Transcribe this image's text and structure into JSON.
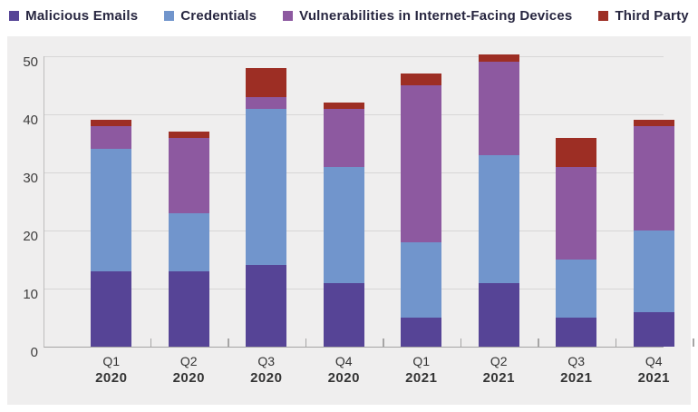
{
  "chart_data": {
    "type": "bar",
    "stacked": true,
    "title": "",
    "xlabel": "",
    "ylabel": "",
    "legend_position": "top",
    "grid": true,
    "plot_background": "#efeeee",
    "y_axis": {
      "ticks": [
        0,
        10,
        20,
        30,
        40,
        50
      ],
      "range": [
        0,
        50
      ]
    },
    "categories": [
      {
        "quarter": "Q1",
        "year": "2020"
      },
      {
        "quarter": "Q2",
        "year": "2020"
      },
      {
        "quarter": "Q3",
        "year": "2020"
      },
      {
        "quarter": "Q4",
        "year": "2020"
      },
      {
        "quarter": "Q1",
        "year": "2021"
      },
      {
        "quarter": "Q2",
        "year": "2021"
      },
      {
        "quarter": "Q3",
        "year": "2021"
      },
      {
        "quarter": "Q4",
        "year": "2021"
      }
    ],
    "series": [
      {
        "name": "Malicious Emails",
        "color": "#564496",
        "values": [
          13,
          13,
          14,
          11,
          5,
          11,
          5,
          6
        ]
      },
      {
        "name": "Credentials",
        "color": "#7195cc",
        "values": [
          21,
          10,
          27,
          20,
          13,
          22,
          10,
          14
        ]
      },
      {
        "name": "Vulnerabilities in Internet-Facing Devices",
        "color": "#8d59a0",
        "values": [
          4,
          13,
          2,
          10,
          27,
          16,
          16,
          18
        ]
      },
      {
        "name": "Third Party",
        "color": "#9d2e24",
        "values": [
          1,
          1,
          5,
          1,
          2,
          1.3,
          5,
          1
        ]
      }
    ]
  },
  "colors": {
    "page_bg": "#ffffff",
    "panel_bg": "#efeeee",
    "gridline": "#d7d6d6",
    "axis_line": "#a6a5a5",
    "legend_text": "#272640",
    "axis_text": "#3e3d3d"
  }
}
